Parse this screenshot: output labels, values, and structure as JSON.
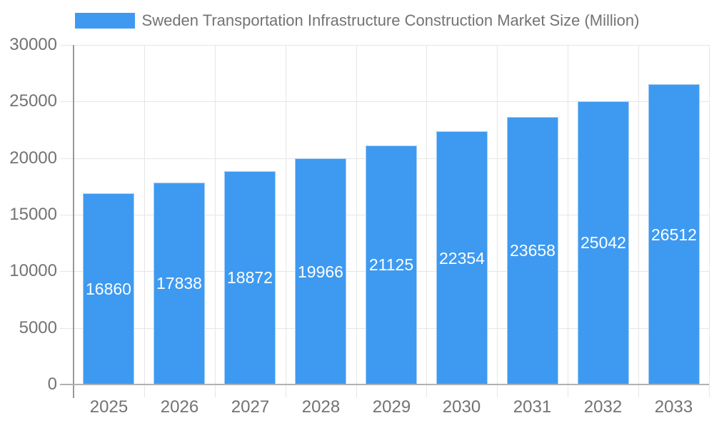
{
  "legend": {
    "label": "Sweden Transportation Infrastructure Construction Market Size (Million)"
  },
  "colors": {
    "bar": "#3e9af0",
    "bar_border": "#a3cdf4",
    "grid": "#e6e6e6",
    "axis_y": "#999999",
    "axis_x": "#b0b0b0",
    "tick_text": "#737373",
    "value_text": "#ffffff",
    "background": "#ffffff"
  },
  "chart_data": {
    "type": "bar",
    "title": "Sweden Transportation Infrastructure Construction Market Size (Million)",
    "categories": [
      "2025",
      "2026",
      "2027",
      "2028",
      "2029",
      "2030",
      "2031",
      "2032",
      "2033"
    ],
    "values": [
      16860,
      17838,
      18872,
      19966,
      21125,
      22354,
      23658,
      25042,
      26512
    ],
    "series_name": "Sweden Transportation Infrastructure Construction Market Size (Million)",
    "xlabel": "",
    "ylabel": "",
    "ylim": [
      0,
      30000
    ],
    "ytick_interval": 5000,
    "yticks": [
      0,
      5000,
      10000,
      15000,
      20000,
      25000,
      30000
    ],
    "grid": "on",
    "legend_position": "top",
    "value_labels": "inside-middle-white"
  }
}
